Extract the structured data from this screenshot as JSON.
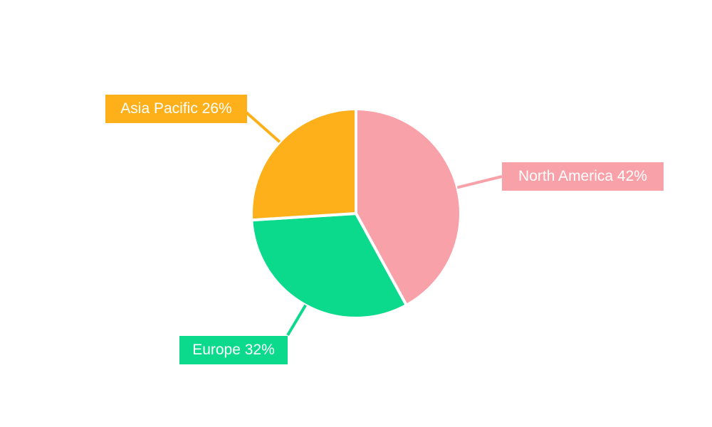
{
  "chart_data": {
    "type": "pie",
    "categories": [
      "North America",
      "Europe",
      "Asia Pacific"
    ],
    "values": [
      42,
      32,
      26
    ],
    "value_unit": "%",
    "labels": [
      "North America 42%",
      "Europe 32%",
      "Asia Pacific 26%"
    ],
    "colors": [
      "#F9A1A9",
      "#0BDA8D",
      "#FDB01A"
    ],
    "start_angle_deg": 0,
    "direction": "clockwise",
    "slice_border_color": "#FFFFFF",
    "label_text_color": "#FFFFFF",
    "background": "#FFFFFF",
    "legend_position": "none",
    "title": ""
  }
}
